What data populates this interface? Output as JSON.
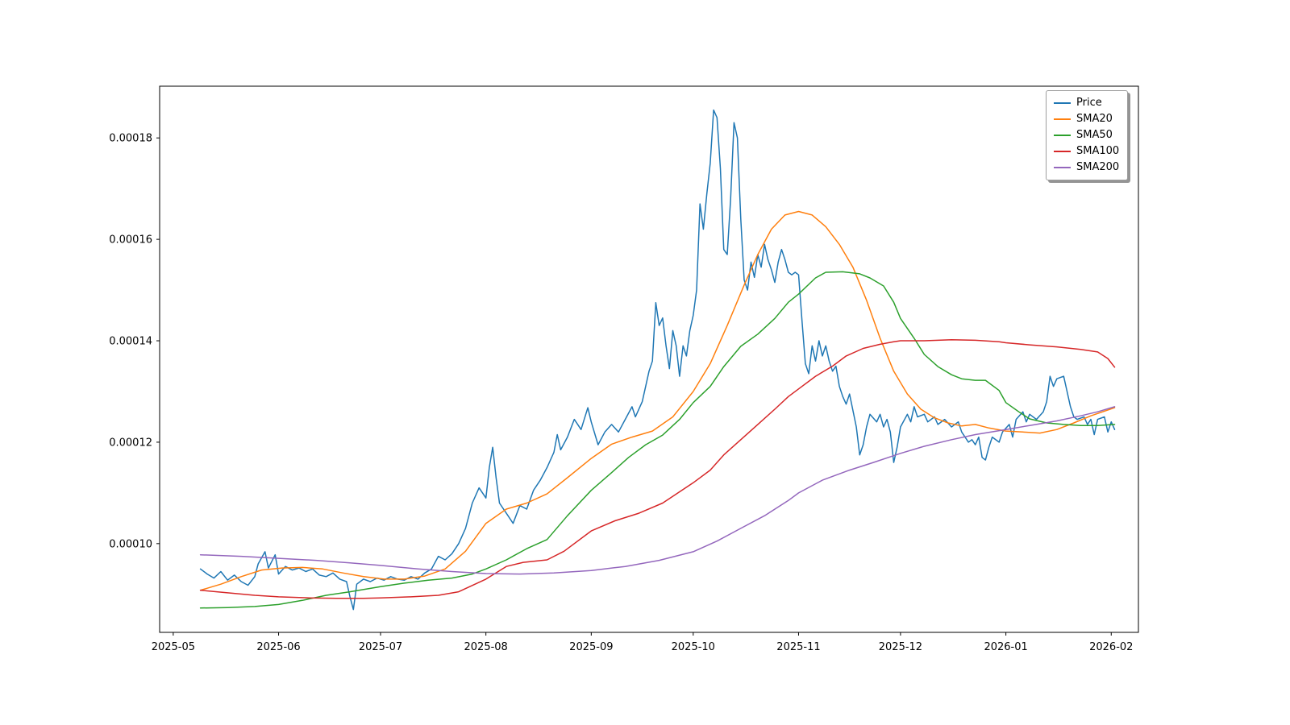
{
  "figure_background": "#ffffff",
  "chart_data": {
    "type": "line",
    "title": "",
    "xlabel": "",
    "ylabel": "",
    "grid": false,
    "legend_position": "upper right",
    "x_unit": "days since 2025-05-01",
    "xlim": [
      -4,
      284
    ],
    "ylim": [
      8.25e-05,
      0.0001902
    ],
    "x_ticks": [
      {
        "value": 0,
        "label": "2025-05"
      },
      {
        "value": 31,
        "label": "2025-06"
      },
      {
        "value": 61,
        "label": "2025-07"
      },
      {
        "value": 92,
        "label": "2025-08"
      },
      {
        "value": 123,
        "label": "2025-09"
      },
      {
        "value": 153,
        "label": "2025-10"
      },
      {
        "value": 184,
        "label": "2025-11"
      },
      {
        "value": 214,
        "label": "2025-12"
      },
      {
        "value": 245,
        "label": "2026-01"
      },
      {
        "value": 276,
        "label": "2026-02"
      }
    ],
    "y_ticks": [
      {
        "value": 0.0001,
        "label": "0.00010"
      },
      {
        "value": 0.00012,
        "label": "0.00012"
      },
      {
        "value": 0.00014,
        "label": "0.00014"
      },
      {
        "value": 0.00016,
        "label": "0.00016"
      },
      {
        "value": 0.00018,
        "label": "0.00018"
      }
    ],
    "series": [
      {
        "name": "Price",
        "color": "#1f77b4",
        "x": [
          8,
          10,
          12,
          14,
          16,
          18,
          20,
          22,
          24,
          25,
          27,
          28,
          30,
          31,
          33,
          35,
          37,
          39,
          41,
          43,
          45,
          47,
          49,
          51,
          52,
          53,
          54,
          56,
          58,
          60,
          62,
          64,
          66,
          68,
          70,
          72,
          74,
          76,
          78,
          80,
          82,
          84,
          86,
          88,
          90,
          92,
          93,
          94,
          95,
          96,
          98,
          100,
          102,
          104,
          106,
          108,
          110,
          112,
          113,
          114,
          116,
          118,
          120,
          122,
          123,
          125,
          127,
          129,
          131,
          133,
          135,
          136,
          138,
          139,
          140,
          141,
          142,
          143,
          144,
          145,
          146,
          147,
          148,
          149,
          150,
          151,
          152,
          153,
          154,
          155,
          156,
          157,
          158,
          159,
          160,
          161,
          162,
          163,
          164,
          165,
          166,
          167,
          168,
          169,
          170,
          171,
          172,
          173,
          174,
          175,
          176,
          177,
          178,
          179,
          180,
          181,
          182,
          183,
          184,
          185,
          186,
          187,
          188,
          189,
          190,
          191,
          192,
          193,
          194,
          195,
          196,
          197,
          198,
          199,
          201,
          202,
          203,
          204,
          205,
          207,
          208,
          209,
          210,
          211,
          212,
          213,
          214,
          216,
          217,
          218,
          219,
          221,
          222,
          224,
          225,
          227,
          229,
          231,
          232,
          234,
          235,
          236,
          237,
          238,
          239,
          240,
          241,
          243,
          244,
          246,
          247,
          248,
          250,
          251,
          252,
          254,
          256,
          257,
          258,
          259,
          260,
          262,
          263,
          264,
          265,
          266,
          268,
          269,
          270,
          271,
          272,
          274,
          275,
          276,
          277
        ],
        "y": [
          9.5e-05,
          9.4e-05,
          9.32e-05,
          9.45e-05,
          9.28e-05,
          9.38e-05,
          9.25e-05,
          9.18e-05,
          9.35e-05,
          9.6e-05,
          9.84e-05,
          9.52e-05,
          9.78e-05,
          9.4e-05,
          9.55e-05,
          9.48e-05,
          9.52e-05,
          9.45e-05,
          9.5e-05,
          9.38e-05,
          9.35e-05,
          9.42e-05,
          9.3e-05,
          9.25e-05,
          8.95e-05,
          8.7e-05,
          9.2e-05,
          9.3e-05,
          9.25e-05,
          9.32e-05,
          9.28e-05,
          9.35e-05,
          9.3e-05,
          9.28e-05,
          9.35e-05,
          9.3e-05,
          9.42e-05,
          9.5e-05,
          9.75e-05,
          9.68e-05,
          9.8e-05,
          0.0001,
          0.000103,
          0.000108,
          0.000111,
          0.000109,
          0.000115,
          0.000119,
          0.000113,
          0.000108,
          0.000106,
          0.000104,
          0.0001075,
          0.0001068,
          0.0001105,
          0.0001125,
          0.000115,
          0.000118,
          0.0001215,
          0.0001185,
          0.000121,
          0.0001245,
          0.0001225,
          0.0001268,
          0.000124,
          0.0001195,
          0.000122,
          0.0001235,
          0.000122,
          0.0001245,
          0.000127,
          0.000125,
          0.000128,
          0.000131,
          0.000134,
          0.000136,
          0.0001475,
          0.000143,
          0.0001445,
          0.000139,
          0.0001345,
          0.000142,
          0.000139,
          0.000133,
          0.000139,
          0.000137,
          0.000142,
          0.000145,
          0.00015,
          0.000167,
          0.000162,
          0.000169,
          0.000175,
          0.0001855,
          0.000184,
          0.000174,
          0.000158,
          0.000157,
          0.000168,
          0.000183,
          0.00018,
          0.000164,
          0.000152,
          0.00015,
          0.0001555,
          0.0001525,
          0.000157,
          0.0001545,
          0.000159,
          0.000156,
          0.000154,
          0.0001515,
          0.0001555,
          0.000158,
          0.000156,
          0.0001535,
          0.000153,
          0.0001535,
          0.000153,
          0.000144,
          0.0001355,
          0.0001335,
          0.000139,
          0.000136,
          0.00014,
          0.000137,
          0.000139,
          0.000136,
          0.000134,
          0.000135,
          0.000131,
          0.000129,
          0.0001275,
          0.0001295,
          0.000123,
          0.0001175,
          0.0001195,
          0.000123,
          0.0001255,
          0.000124,
          0.0001255,
          0.000123,
          0.0001245,
          0.000122,
          0.000116,
          0.000119,
          0.000123,
          0.0001255,
          0.000124,
          0.000127,
          0.000125,
          0.0001255,
          0.000124,
          0.000125,
          0.0001235,
          0.0001245,
          0.000123,
          0.000124,
          0.000122,
          0.00012,
          0.0001205,
          0.0001195,
          0.000121,
          0.000117,
          0.0001165,
          0.000119,
          0.000121,
          0.00012,
          0.000122,
          0.0001235,
          0.000121,
          0.0001245,
          0.000126,
          0.000124,
          0.0001255,
          0.0001245,
          0.000126,
          0.000128,
          0.000133,
          0.000131,
          0.0001325,
          0.000133,
          0.00013,
          0.000127,
          0.000125,
          0.0001245,
          0.000125,
          0.0001235,
          0.0001245,
          0.0001215,
          0.0001245,
          0.000125,
          0.000122,
          0.000124,
          0.0001225
        ]
      },
      {
        "name": "SMA20",
        "color": "#ff7f0e",
        "x": [
          8,
          14,
          20,
          26,
          32,
          38,
          44,
          50,
          56,
          62,
          68,
          74,
          80,
          86,
          92,
          98,
          104,
          110,
          116,
          123,
          129,
          135,
          141,
          147,
          153,
          158,
          163,
          168,
          172,
          176,
          180,
          184,
          188,
          192,
          196,
          200,
          204,
          208,
          212,
          216,
          220,
          224,
          228,
          232,
          236,
          240,
          245,
          250,
          255,
          260,
          265,
          270,
          277
        ],
        "y": [
          9.08e-05,
          9.2e-05,
          9.35e-05,
          9.48e-05,
          9.52e-05,
          9.53e-05,
          9.5e-05,
          9.42e-05,
          9.35e-05,
          9.3e-05,
          9.3e-05,
          9.36e-05,
          9.5e-05,
          9.85e-05,
          0.000104,
          0.0001068,
          0.000108,
          0.0001098,
          0.000113,
          0.0001168,
          0.0001196,
          0.000121,
          0.0001222,
          0.000125,
          0.00013,
          0.0001355,
          0.000143,
          0.000151,
          0.000157,
          0.000162,
          0.0001648,
          0.0001655,
          0.0001648,
          0.0001625,
          0.000159,
          0.0001545,
          0.000148,
          0.0001405,
          0.000134,
          0.0001295,
          0.0001265,
          0.0001248,
          0.0001238,
          0.0001232,
          0.0001235,
          0.0001228,
          0.0001222,
          0.000122,
          0.0001218,
          0.0001225,
          0.0001238,
          0.0001252,
          0.0001268
        ]
      },
      {
        "name": "SMA50",
        "color": "#2ca02c",
        "x": [
          8,
          16,
          24,
          31,
          38,
          45,
          52,
          61,
          68,
          75,
          82,
          88,
          92,
          98,
          104,
          110,
          116,
          123,
          129,
          134,
          139,
          144,
          149,
          153,
          158,
          162,
          167,
          172,
          177,
          181,
          184,
          189,
          192,
          197,
          202,
          205,
          209,
          212,
          214,
          218,
          221,
          225,
          229,
          232,
          236,
          239,
          243,
          245,
          249,
          252,
          257,
          262,
          267,
          272,
          277
        ],
        "y": [
          8.73e-05,
          8.74e-05,
          8.76e-05,
          8.8e-05,
          8.88e-05,
          8.98e-05,
          9.05e-05,
          9.15e-05,
          9.22e-05,
          9.28e-05,
          9.32e-05,
          9.4e-05,
          9.5e-05,
          9.68e-05,
          9.9e-05,
          0.0001008,
          0.0001055,
          0.0001105,
          0.000114,
          0.000117,
          0.0001195,
          0.0001214,
          0.0001245,
          0.0001278,
          0.000131,
          0.0001349,
          0.0001389,
          0.0001413,
          0.0001444,
          0.0001476,
          0.0001492,
          0.0001524,
          0.0001535,
          0.0001536,
          0.0001532,
          0.0001524,
          0.0001508,
          0.0001476,
          0.0001444,
          0.0001405,
          0.0001373,
          0.0001349,
          0.0001333,
          0.0001325,
          0.0001322,
          0.0001322,
          0.0001302,
          0.0001278,
          0.0001259,
          0.0001246,
          0.0001238,
          0.0001235,
          0.0001233,
          0.0001233,
          0.0001235
        ]
      },
      {
        "name": "SMA100",
        "color": "#d62728",
        "x": [
          8,
          16,
          24,
          31,
          40,
          48,
          56,
          61,
          70,
          78,
          84,
          92,
          98,
          103,
          110,
          115,
          123,
          130,
          137,
          144,
          153,
          158,
          162,
          167,
          172,
          177,
          181,
          184,
          189,
          194,
          198,
          203,
          208,
          212,
          214,
          221,
          229,
          236,
          243,
          245,
          252,
          260,
          267,
          272,
          275,
          277
        ],
        "y": [
          9.08e-05,
          9.03e-05,
          8.98e-05,
          8.95e-05,
          8.93e-05,
          8.92e-05,
          8.92e-05,
          8.93e-05,
          8.95e-05,
          8.98e-05,
          9.05e-05,
          9.3e-05,
          9.55e-05,
          9.63e-05,
          9.68e-05,
          9.85e-05,
          0.0001025,
          0.0001045,
          0.000106,
          0.000108,
          0.000112,
          0.0001145,
          0.0001175,
          0.0001205,
          0.0001235,
          0.0001265,
          0.000129,
          0.0001305,
          0.000133,
          0.000135,
          0.000137,
          0.0001385,
          0.0001393,
          0.0001398,
          0.00014,
          0.00014,
          0.0001402,
          0.0001401,
          0.0001398,
          0.0001396,
          0.0001392,
          0.0001388,
          0.0001383,
          0.0001378,
          0.0001365,
          0.0001348
        ]
      },
      {
        "name": "SMA200",
        "color": "#9467bd",
        "x": [
          8,
          20,
          31,
          42,
          52,
          61,
          72,
          82,
          92,
          102,
          112,
          123,
          133,
          143,
          153,
          160,
          167,
          174,
          181,
          184,
          191,
          199,
          206,
          214,
          221,
          229,
          236,
          245,
          252,
          260,
          267,
          272,
          277
        ],
        "y": [
          9.78e-05,
          9.75e-05,
          9.71e-05,
          9.67e-05,
          9.62e-05,
          9.57e-05,
          9.5e-05,
          9.45e-05,
          9.41e-05,
          9.4e-05,
          9.42e-05,
          9.47e-05,
          9.55e-05,
          9.67e-05,
          9.84e-05,
          0.0001005,
          0.000103,
          0.0001055,
          0.0001085,
          0.00011,
          0.0001125,
          0.0001145,
          0.000116,
          0.0001178,
          0.0001192,
          0.0001205,
          0.0001215,
          0.0001225,
          0.0001233,
          0.0001242,
          0.0001252,
          0.000126,
          0.000127
        ]
      }
    ]
  }
}
